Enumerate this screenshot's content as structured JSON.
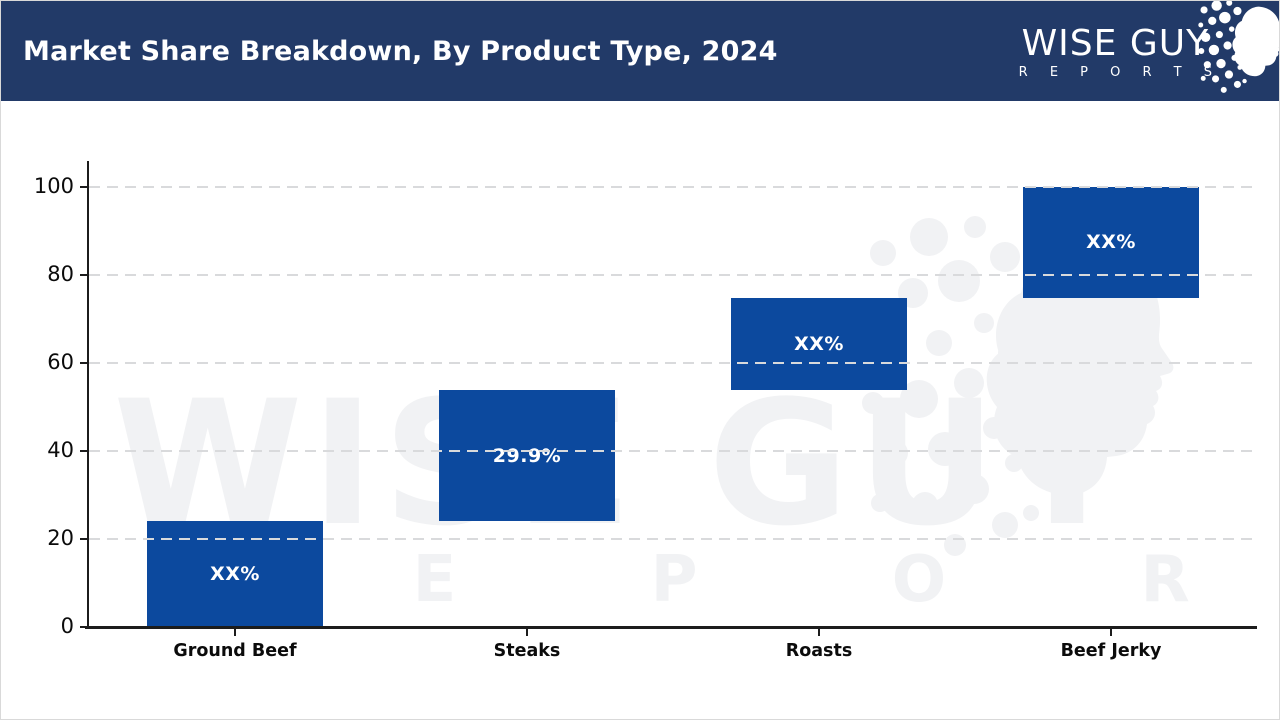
{
  "header": {
    "title": "Market Share Breakdown, By Product Type, 2024",
    "logo": {
      "name": "WISE GUY",
      "subtitle": "R E P O R T S"
    }
  },
  "watermark": {
    "wordmark": "WISE GUY",
    "subtitle": "R E P O R T S"
  },
  "colors": {
    "header_bg": "#223a68",
    "bar": "#0c499e",
    "grid": "#d9dadc",
    "axis": "#1c1c1c",
    "tick_text": "#0b0b0b",
    "bar_label": "#ffffff",
    "watermark": "#f1f2f4",
    "page_border": "#d9d9d9"
  },
  "chart_data": {
    "type": "bar",
    "subtype": "waterfall-floating-bars",
    "title": "Market Share Breakdown, By Product Type, 2024",
    "categories": [
      "Ground Beef",
      "Steaks",
      "Roasts",
      "Beef Jerky"
    ],
    "bars": [
      {
        "category": "Ground Beef",
        "start": 0,
        "end": 24,
        "label": "XX%"
      },
      {
        "category": "Steaks",
        "start": 24,
        "end": 53.9,
        "label": "29.9%"
      },
      {
        "category": "Roasts",
        "start": 53.9,
        "end": 74.8,
        "label": "XX%"
      },
      {
        "category": "Beef Jerky",
        "start": 74.8,
        "end": 100,
        "label": "XX%"
      }
    ],
    "xlabel": "",
    "ylabel": "",
    "ylim": [
      0,
      100
    ],
    "yticks": [
      0,
      20,
      40,
      60,
      80,
      100
    ],
    "grid": "dashed-horizontal",
    "legend": null
  }
}
